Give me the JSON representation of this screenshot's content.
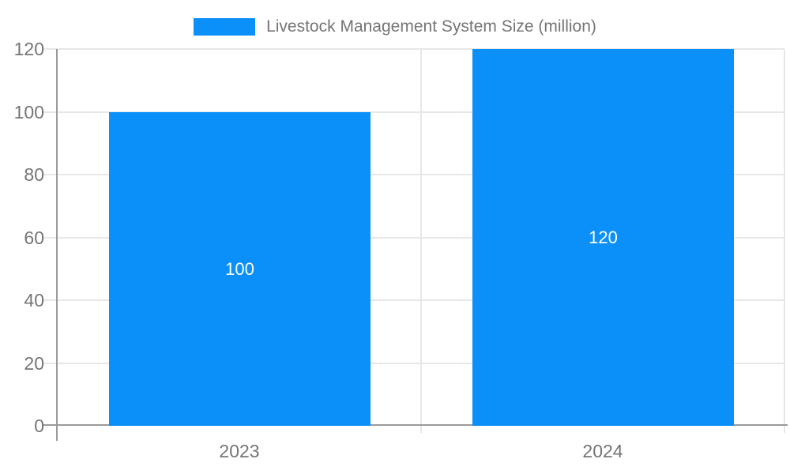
{
  "chart_data": {
    "type": "bar",
    "title": "Livestock Management System Size (million)",
    "legend": {
      "position": "top",
      "entries": [
        "Livestock Management System Size (million)"
      ]
    },
    "categories": [
      "2023",
      "2024"
    ],
    "values": [
      100,
      120
    ],
    "bar_labels": [
      "100",
      "120"
    ],
    "xlabel": "",
    "ylabel": "",
    "ylim": [
      0,
      120
    ],
    "yticks": [
      0,
      20,
      40,
      60,
      80,
      100,
      120
    ],
    "grid": true,
    "colors": {
      "bar": "#0A90F8",
      "label_text": "#ffffff",
      "axis_text": "#757575",
      "grid_line": "#e7e7e7",
      "axis_line": "#9a9a9a",
      "background": "#ffffff"
    }
  }
}
